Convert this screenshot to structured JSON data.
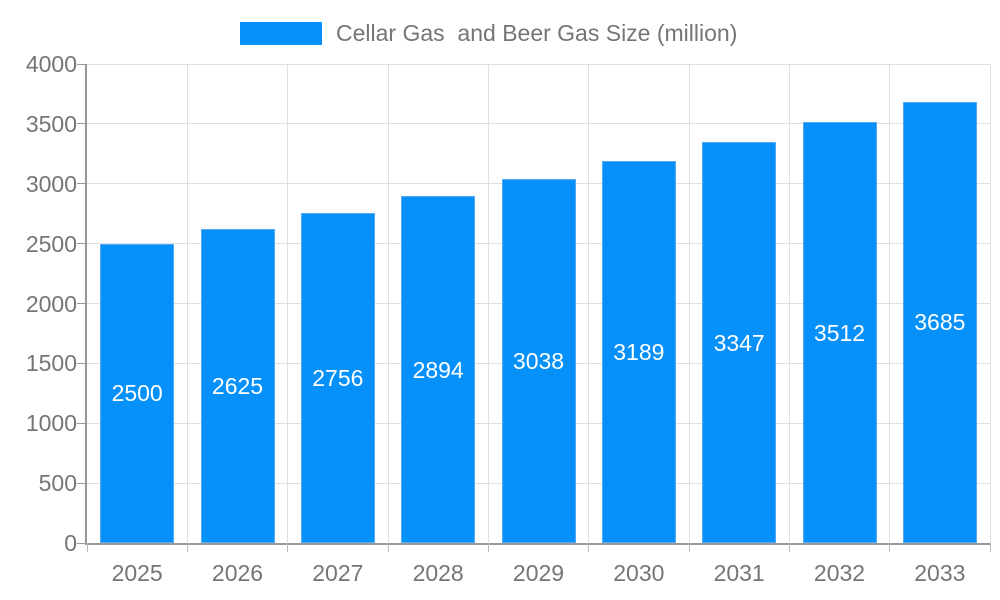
{
  "legend": {
    "label": "Cellar Gas  and Beer Gas Size (million)",
    "swatch_color": "#0690fa"
  },
  "chart_data": {
    "type": "bar",
    "title": "Cellar Gas  and Beer Gas Size (million)",
    "categories": [
      "2025",
      "2026",
      "2027",
      "2028",
      "2029",
      "2030",
      "2031",
      "2032",
      "2033"
    ],
    "values": [
      2500,
      2625,
      2756,
      2894,
      3038,
      3189,
      3347,
      3512,
      3685
    ],
    "xlabel": "",
    "ylabel": "",
    "ylim": [
      0,
      4000
    ],
    "ytick_step": 500,
    "grid": true,
    "legend_position": "top-center",
    "bar_color": "#0690fa",
    "bar_label_color": "#ffffff",
    "axis_color": "#999999",
    "grid_color": "#e0e0e0",
    "text_color": "#757575"
  }
}
